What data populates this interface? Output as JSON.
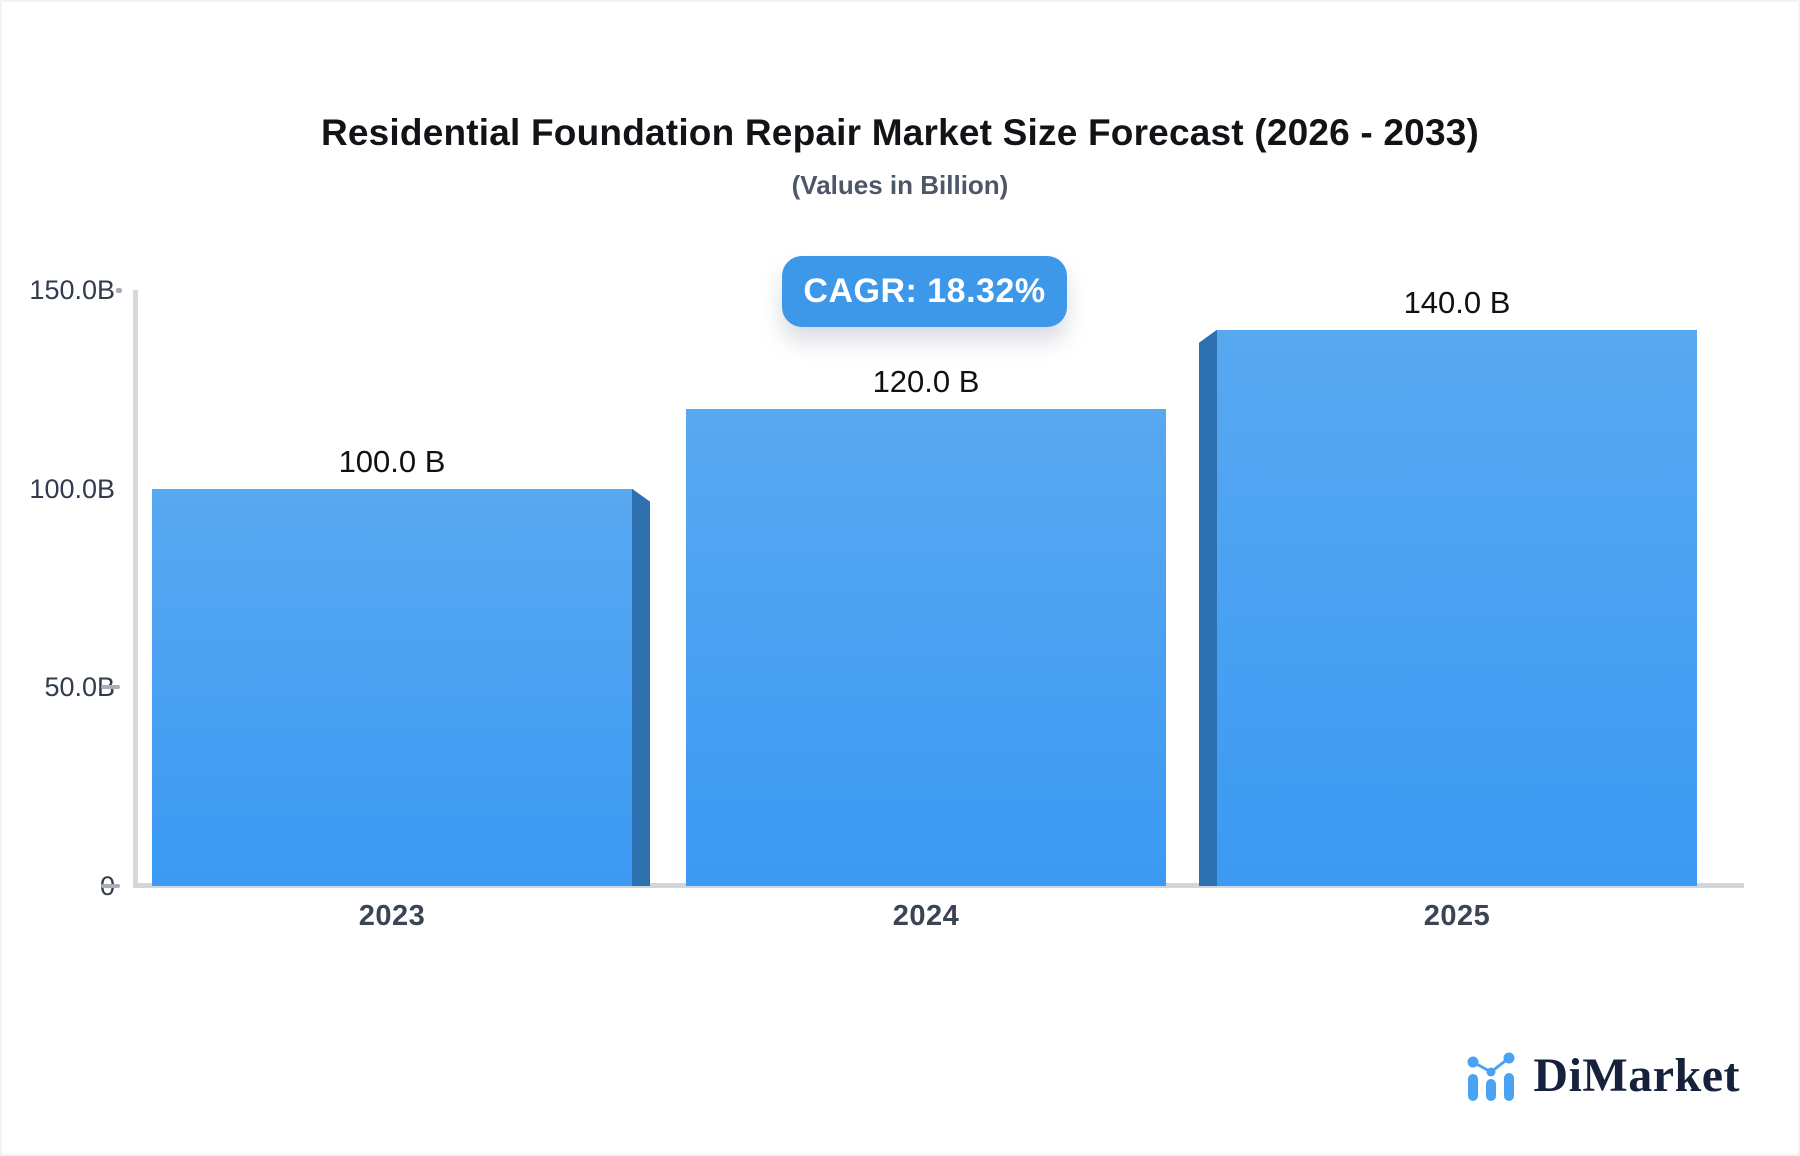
{
  "header": {
    "title": "Residential Foundation Repair Market Size Forecast (2026 - 2033)",
    "subtitle": "(Values in Billion)",
    "badge_label": "CAGR: 18.32%"
  },
  "logo": {
    "text": "DiMarket"
  },
  "colors": {
    "bar_top": "#58a8f0",
    "bar_bottom": "#3b9af3",
    "bar_side": "#2d71b1",
    "badge_bg": "#3d98e9",
    "axis": "#d4d7dc"
  },
  "chart_data": {
    "type": "bar",
    "title": "Residential Foundation Repair Market Size Forecast (2026 - 2033)",
    "subtitle": "(Values in Billion)",
    "categories": [
      "2023",
      "2024",
      "2025"
    ],
    "values": [
      100,
      120,
      140
    ],
    "bar_labels": [
      "100.0 B",
      "120.0 B",
      "140.0 B"
    ],
    "unit": "Billion",
    "cagr": "18.32%",
    "ylim": [
      0,
      150
    ],
    "yticks": [
      {
        "label": "0",
        "value": 0,
        "marker": "dash"
      },
      {
        "label": "50.0B",
        "value": 50,
        "marker": "dash"
      },
      {
        "label": "100.0B",
        "value": 100,
        "marker": "none"
      },
      {
        "label": "150.0B",
        "value": 150,
        "marker": "dot"
      }
    ],
    "xlabel": "",
    "ylabel": "",
    "grid": false,
    "legend": false
  }
}
